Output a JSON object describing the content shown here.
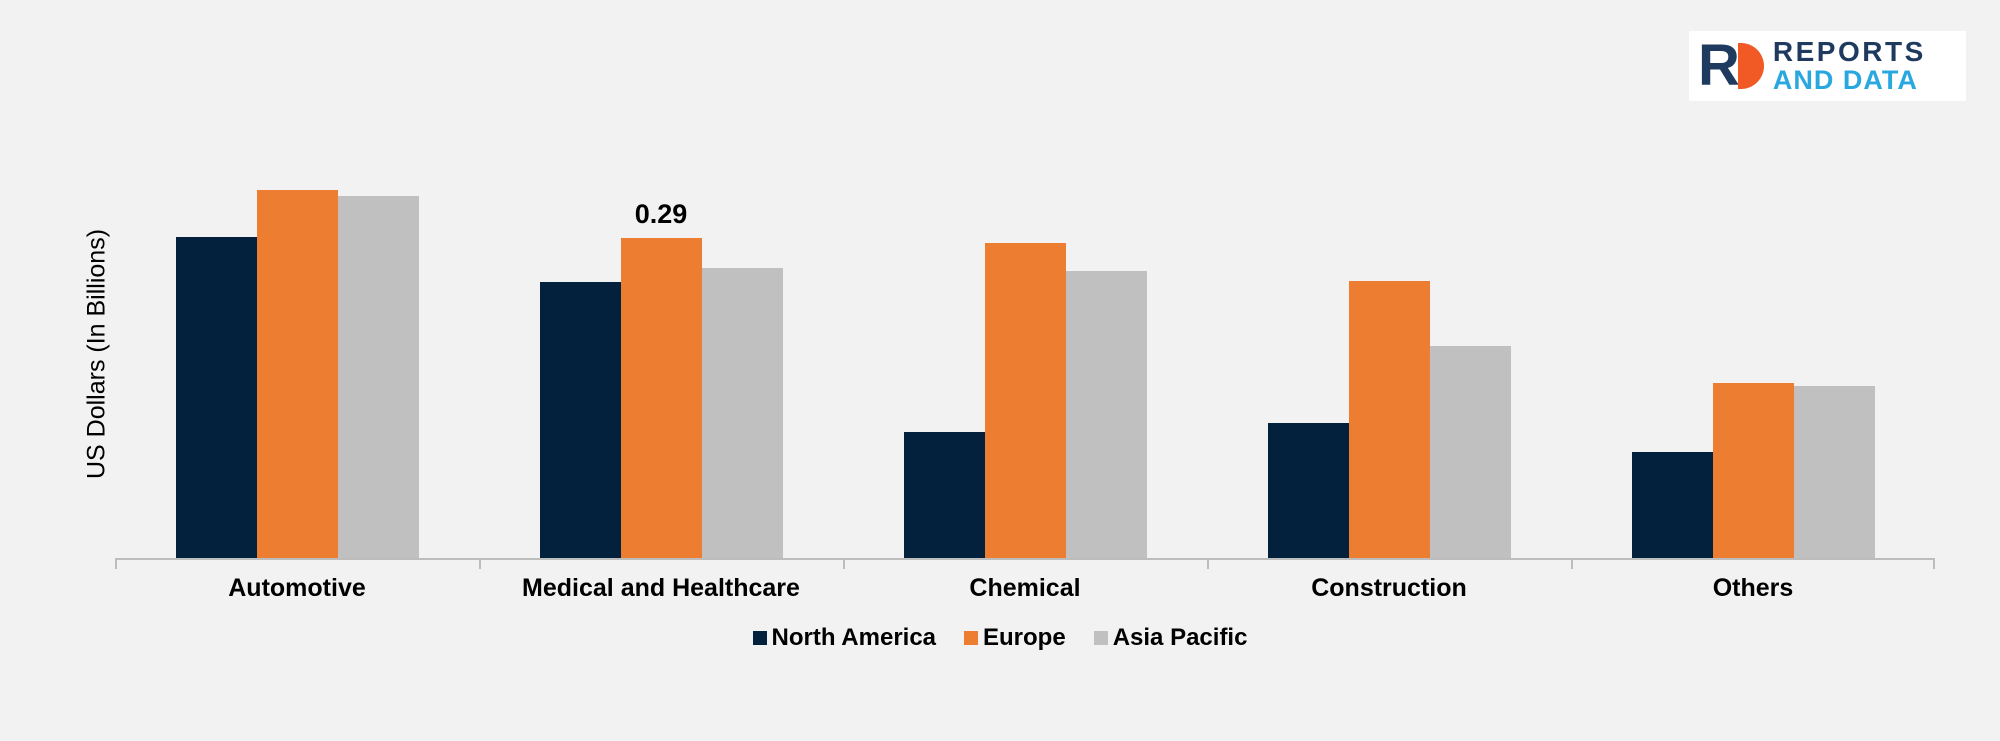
{
  "page": {
    "background": "#F2F2F2"
  },
  "logo": {
    "mark_letter": "R",
    "line1": "REPORTS",
    "line2": "AND DATA",
    "navy": "#1E3A5F",
    "light_blue": "#29A8E0",
    "orange": "#F15A24"
  },
  "chart_data": {
    "type": "bar",
    "title": "",
    "xlabel": "",
    "ylabel": "US Dollars (In Billions)",
    "categories": [
      "Automotive",
      "Medical and Healthcare",
      "Chemical",
      "Construction",
      "Others"
    ],
    "series": [
      {
        "name": "North America",
        "color": "#03213D",
        "values": [
          0.291,
          0.25,
          0.114,
          0.122,
          0.096
        ]
      },
      {
        "name": "Europe",
        "color": "#ED7D31",
        "values": [
          0.334,
          0.29,
          0.286,
          0.251,
          0.159
        ]
      },
      {
        "name": "Asia Pacific",
        "color": "#C0C0C0",
        "values": [
          0.328,
          0.263,
          0.26,
          0.192,
          0.156
        ]
      }
    ],
    "data_labels": [
      {
        "series_index": 1,
        "category_index": 1,
        "text": "0.29"
      }
    ],
    "ylim": [
      0,
      0.37
    ],
    "grid": false,
    "y_tick_labels_shown": false,
    "legend_position": "bottom",
    "axis_color": "#BDBDBD"
  }
}
